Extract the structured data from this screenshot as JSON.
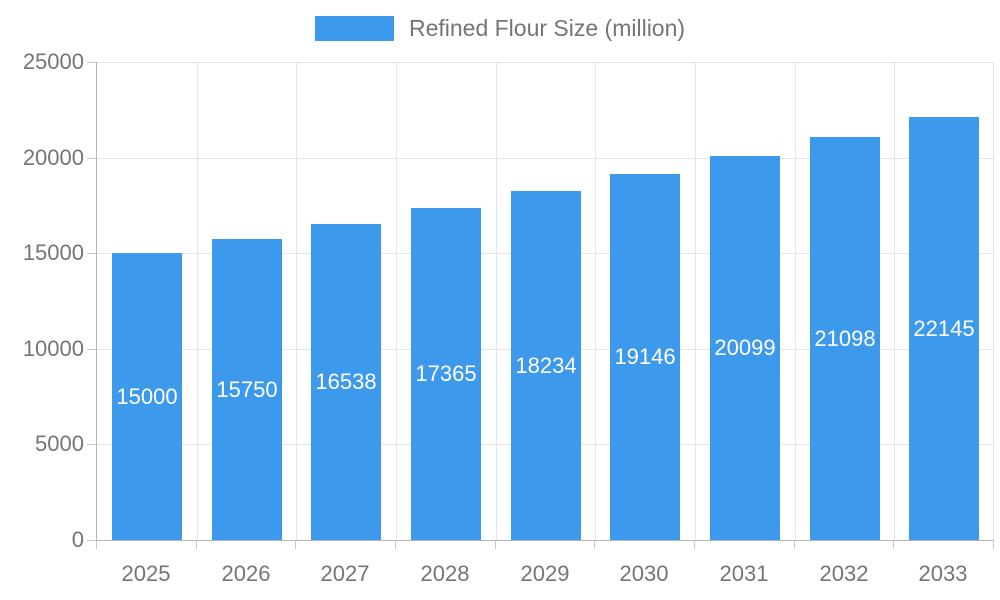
{
  "legend": {
    "label": "Refined Flour Size (million)"
  },
  "chart_data": {
    "type": "bar",
    "title": "Refined Flour Size (million)",
    "series_name": "Refined Flour Size (million)",
    "categories": [
      "2025",
      "2026",
      "2027",
      "2028",
      "2029",
      "2030",
      "2031",
      "2032",
      "2033"
    ],
    "values": [
      15000,
      15750,
      16538,
      17365,
      18234,
      19146,
      20099,
      21098,
      22145
    ],
    "xlabel": "",
    "ylabel": "",
    "ylim": [
      0,
      25000
    ],
    "yticks": [
      0,
      5000,
      10000,
      15000,
      20000,
      25000
    ],
    "grid": true,
    "legend_position": "top",
    "bar_color": "#3C99EC",
    "value_label_color": "#ffffff",
    "axis_text_color": "#757575",
    "gridline_color": "#e5e5e5",
    "axis_line_color": "#b5b5b5"
  }
}
